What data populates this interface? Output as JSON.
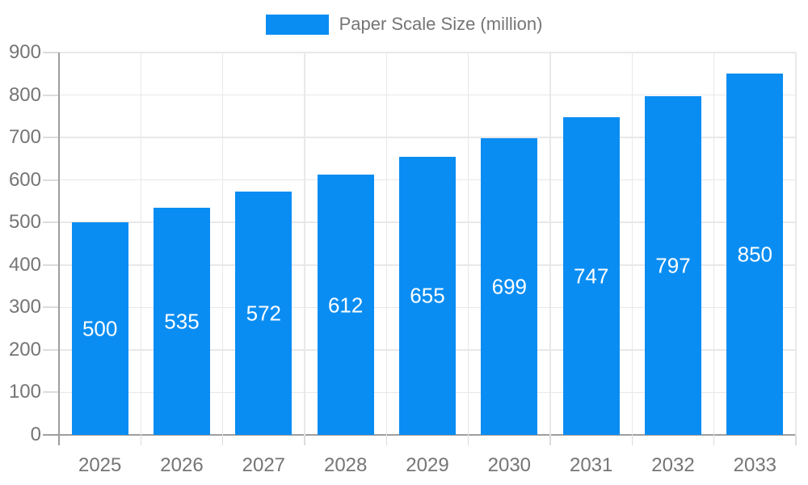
{
  "chart_data": {
    "type": "bar",
    "title": "",
    "categories": [
      "2025",
      "2026",
      "2027",
      "2028",
      "2029",
      "2030",
      "2031",
      "2032",
      "2033"
    ],
    "series": [
      {
        "name": "Paper Scale Size (million)",
        "values": [
          500,
          535,
          572,
          612,
          655,
          699,
          747,
          797,
          850
        ]
      }
    ],
    "data_labels": [
      "500",
      "535",
      "572",
      "612",
      "655",
      "699",
      "747",
      "797",
      "850"
    ],
    "data_label_position": "inside-center",
    "xlabel": "",
    "ylabel": "",
    "ylim": [
      0,
      900
    ],
    "ytick_step": 100,
    "ytick_labels": [
      "0",
      "100",
      "200",
      "300",
      "400",
      "500",
      "600",
      "700",
      "800",
      "900"
    ],
    "grid": "horizontal and vertical gridlines at ticks",
    "legend_position": "top-center",
    "colors": {
      "bar": "#0A8DF2",
      "bar_label_text": "#FFFFFF",
      "axis_label_text": "#757575",
      "legend_text": "#757575",
      "gridline": "#E8E8E8",
      "tick": "#DCDCDC",
      "axis_line": "#9E9E9E",
      "background": "#FFFFFF"
    }
  }
}
